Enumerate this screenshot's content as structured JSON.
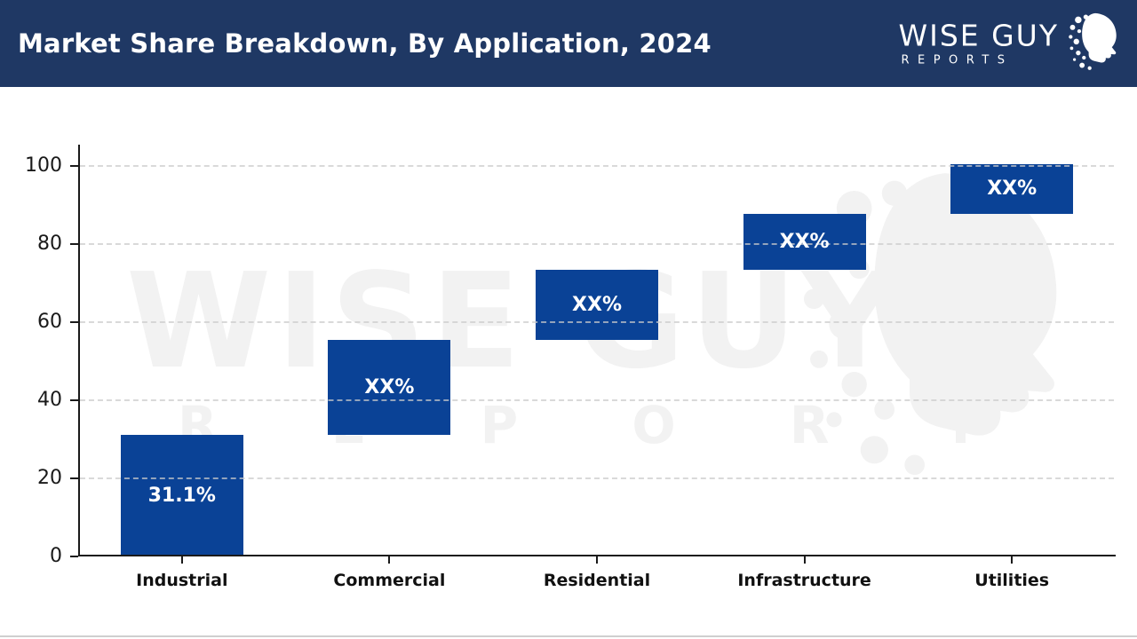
{
  "header": {
    "title": "Market Share Breakdown, By Application, 2024",
    "logo": {
      "line1": "WISE GUY",
      "line2": "REPORTS"
    }
  },
  "watermark": {
    "line1": "WISE GUY",
    "line2": "R E P O R T S"
  },
  "colors": {
    "header_bg": "#1f3864",
    "bar": "#0a4296",
    "bar_label": "#ffffff",
    "axis": "#1a1a1a",
    "grid": "#cbcbcb",
    "watermark": "#f2f2f2"
  },
  "chart_data": {
    "type": "bar",
    "subtype": "waterfall",
    "title": "Market Share Breakdown, By Application, 2024",
    "categories": [
      "Industrial",
      "Commercial",
      "Residential",
      "Infrastructure",
      "Utilities"
    ],
    "bars": [
      {
        "category": "Industrial",
        "start": 0,
        "end": 31.1,
        "label": "31.1%"
      },
      {
        "category": "Commercial",
        "start": 31.1,
        "end": 55.5,
        "label": "XX%"
      },
      {
        "category": "Residential",
        "start": 55.5,
        "end": 73.5,
        "label": "XX%"
      },
      {
        "category": "Infrastructure",
        "start": 73.5,
        "end": 87.7,
        "label": "XX%"
      },
      {
        "category": "Utilities",
        "start": 87.7,
        "end": 100.5,
        "label": "XX%"
      }
    ],
    "yticks": [
      0,
      20,
      40,
      60,
      80,
      100
    ],
    "ylim": [
      0,
      105
    ],
    "xlabel": "",
    "ylabel": "",
    "grid": "horizontal-dashed",
    "legend": "none"
  }
}
